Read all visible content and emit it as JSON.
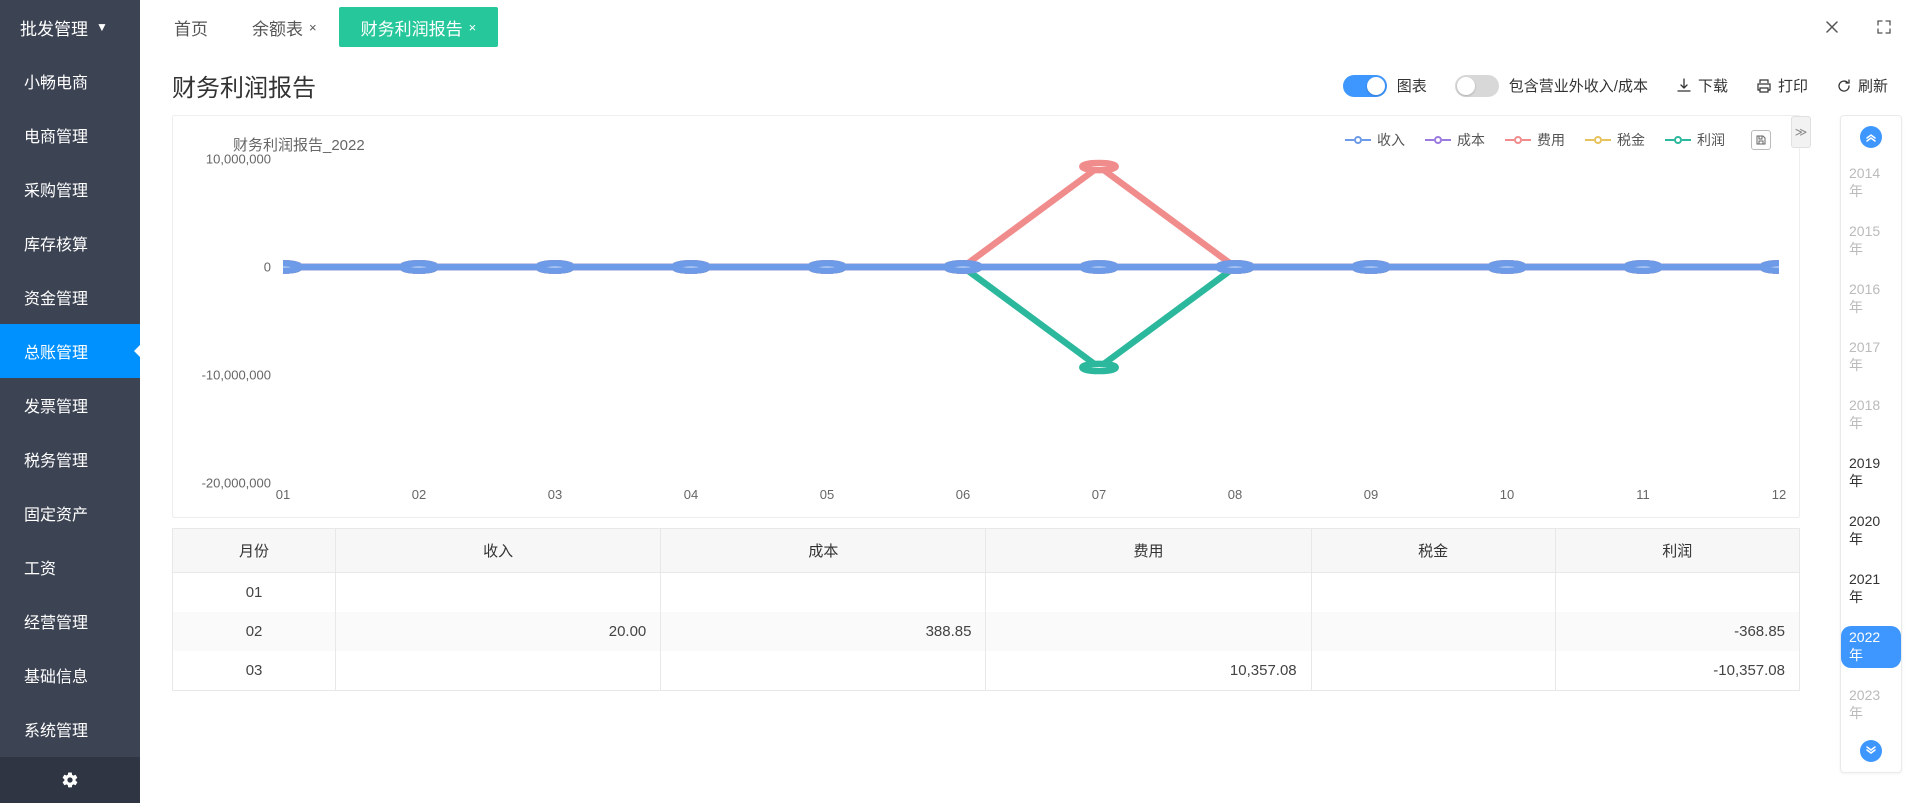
{
  "sidebar": {
    "header": "批发管理",
    "items": [
      {
        "label": "小畅电商",
        "id": "ecommerce-xiaochang"
      },
      {
        "label": "电商管理",
        "id": "ecommerce-mgmt"
      },
      {
        "label": "采购管理",
        "id": "purchase-mgmt"
      },
      {
        "label": "库存核算",
        "id": "inventory-acct"
      },
      {
        "label": "资金管理",
        "id": "cash-mgmt"
      },
      {
        "label": "总账管理",
        "id": "ledger-mgmt",
        "active": true
      },
      {
        "label": "发票管理",
        "id": "invoice-mgmt"
      },
      {
        "label": "税务管理",
        "id": "tax-mgmt"
      },
      {
        "label": "固定资产",
        "id": "fixed-assets"
      },
      {
        "label": "工资",
        "id": "payroll"
      },
      {
        "label": "经营管理",
        "id": "ops-mgmt"
      },
      {
        "label": "基础信息",
        "id": "base-info"
      },
      {
        "label": "系统管理",
        "id": "system-mgmt"
      }
    ]
  },
  "tabs": [
    {
      "label": "首页",
      "closable": false
    },
    {
      "label": "余额表",
      "closable": true
    },
    {
      "label": "财务利润报告",
      "closable": true,
      "active": true
    }
  ],
  "page_title": "财务利润报告",
  "controls": {
    "chart_toggle_label": "图表",
    "chart_toggle_on": true,
    "extra_toggle_label": "包含营业外收入/成本",
    "extra_toggle_on": false,
    "download_label": "下载",
    "print_label": "打印",
    "refresh_label": "刷新"
  },
  "chart": {
    "title": "财务利润报告_2022",
    "type": "line",
    "x_categories": [
      "01",
      "02",
      "03",
      "04",
      "05",
      "06",
      "07",
      "08",
      "09",
      "10",
      "11",
      "12"
    ],
    "y_ticks": [
      {
        "value": 10000000,
        "label": "10,000,000"
      },
      {
        "value": 0,
        "label": "0"
      },
      {
        "value": -10000000,
        "label": "-10,000,000"
      },
      {
        "value": -20000000,
        "label": "-20,000,000"
      }
    ],
    "ylim": [
      -20000000,
      10000000
    ],
    "series": [
      {
        "name": "收入",
        "color": "#6d9be8",
        "data": [
          0,
          0,
          0,
          0,
          0,
          0,
          0,
          0,
          0,
          0,
          0,
          0
        ]
      },
      {
        "name": "成本",
        "color": "#9b7be0",
        "data": [
          0,
          0,
          0,
          0,
          0,
          0,
          0,
          0,
          0,
          0,
          0,
          0
        ]
      },
      {
        "name": "费用",
        "color": "#f08c8c",
        "data": [
          0,
          0,
          0,
          0,
          0,
          0,
          9300000,
          0,
          0,
          0,
          0,
          0
        ]
      },
      {
        "name": "税金",
        "color": "#e8c35c",
        "data": [
          0,
          0,
          0,
          0,
          0,
          0,
          0,
          0,
          0,
          0,
          0,
          0
        ]
      },
      {
        "name": "利润",
        "color": "#2bb89d",
        "data": [
          0,
          0,
          0,
          0,
          0,
          0,
          -9300000,
          0,
          0,
          0,
          0,
          0
        ]
      }
    ],
    "background_color": "#ffffff",
    "grid_color": "#e0e0e0",
    "line_width": 2,
    "marker_radius": 4
  },
  "table": {
    "columns": [
      {
        "label": "月份",
        "key": "month",
        "width": "10%",
        "align": "center"
      },
      {
        "label": "收入",
        "key": "income",
        "width": "20%",
        "align": "right"
      },
      {
        "label": "成本",
        "key": "cost",
        "width": "20%",
        "align": "right"
      },
      {
        "label": "费用",
        "key": "expense",
        "width": "20%",
        "align": "right"
      },
      {
        "label": "税金",
        "key": "tax",
        "width": "15%",
        "align": "right"
      },
      {
        "label": "利润",
        "key": "profit",
        "width": "15%",
        "align": "right"
      }
    ],
    "rows": [
      {
        "month": "01",
        "income": "",
        "cost": "",
        "expense": "",
        "tax": "",
        "profit": ""
      },
      {
        "month": "02",
        "income": "20.00",
        "cost": "388.85",
        "expense": "",
        "tax": "",
        "profit": "-368.85"
      },
      {
        "month": "03",
        "income": "",
        "cost": "",
        "expense": "10,357.08",
        "tax": "",
        "profit": "-10,357.08"
      }
    ]
  },
  "years": {
    "items": [
      {
        "label": "2014年",
        "enabled": false
      },
      {
        "label": "2015年",
        "enabled": false
      },
      {
        "label": "2016年",
        "enabled": false
      },
      {
        "label": "2017年",
        "enabled": false
      },
      {
        "label": "2018年",
        "enabled": false
      },
      {
        "label": "2019年",
        "enabled": true
      },
      {
        "label": "2020年",
        "enabled": true
      },
      {
        "label": "2021年",
        "enabled": true
      },
      {
        "label": "2022年",
        "enabled": true,
        "active": true
      },
      {
        "label": "2023年",
        "enabled": false
      }
    ]
  }
}
